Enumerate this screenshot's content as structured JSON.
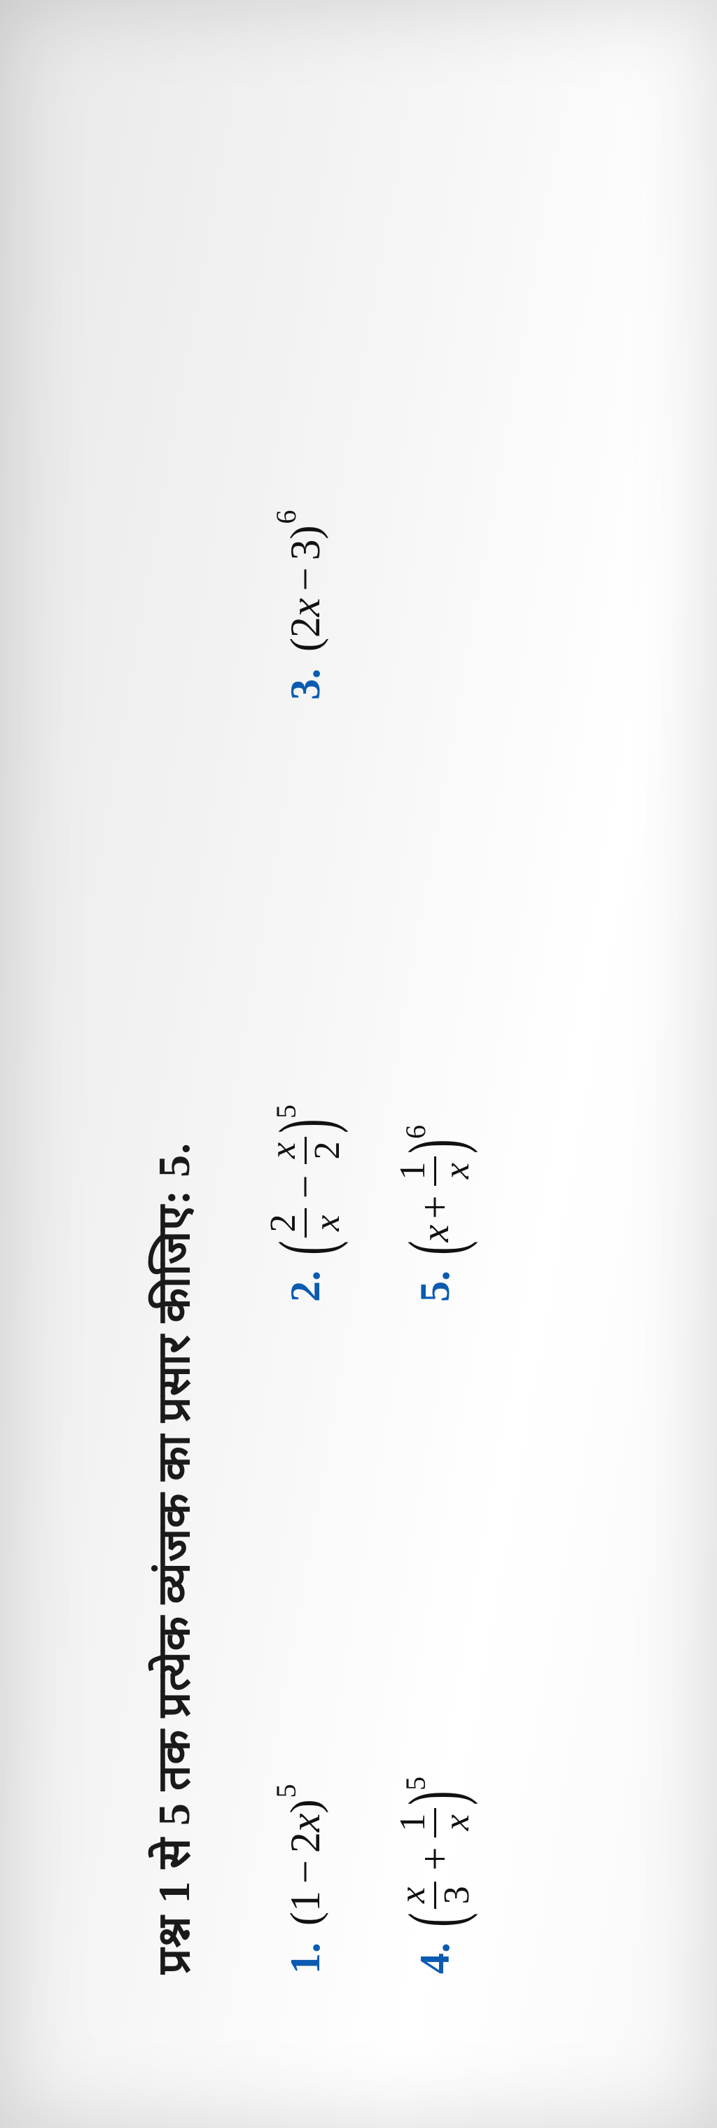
{
  "heading": "प्रश्न 1 से 5 तक प्रत्येक व्यंजक का प्रसार कीजिए: 5.",
  "problems": {
    "p1": {
      "num": "1.",
      "base_open": "(",
      "term1": "1",
      "op": "−",
      "term2_coef": "2",
      "term2_var": "x",
      "base_close": ")",
      "exp": "5"
    },
    "p2": {
      "num": "2.",
      "f1_top": "2",
      "f1_bot": "x",
      "op": "−",
      "f2_top": "x",
      "f2_bot": "2",
      "exp": "5"
    },
    "p3": {
      "num": "3.",
      "base_open": "(",
      "term1_coef": "2",
      "term1_var": "x",
      "op": "−",
      "term2": "3",
      "base_close": ")",
      "exp": "6"
    },
    "p4": {
      "num": "4.",
      "f1_top": "x",
      "f1_bot": "3",
      "op": "+",
      "f2_top": "1",
      "f2_bot": "x",
      "exp": "5"
    },
    "p5": {
      "num": "5.",
      "term1": "x",
      "op": "+",
      "f2_top": "1",
      "f2_bot": "x",
      "exp": "6"
    }
  },
  "style": {
    "heading_color": "#1a1a1a",
    "number_color": "#0b5bb0",
    "expr_color": "#111111",
    "background_tint": "#f5f5f5",
    "heading_fontsize": 64,
    "expr_fontsize": 60,
    "rotation_deg": -90
  }
}
